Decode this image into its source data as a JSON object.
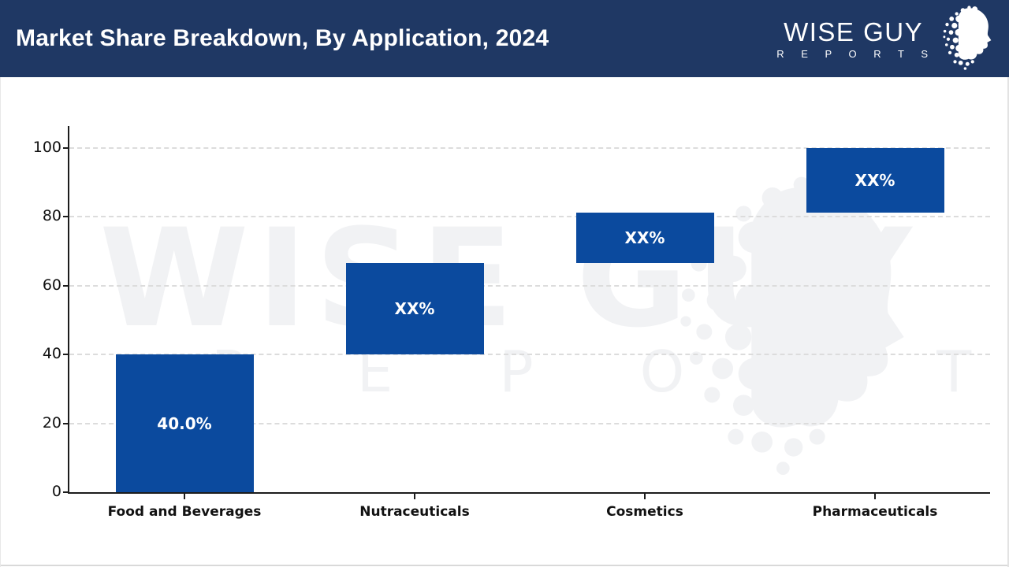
{
  "header": {
    "title": "Market Share Breakdown, By Application, 2024",
    "logo": {
      "line1": "WISE GUY",
      "line2": "R E P O R T S"
    }
  },
  "watermark": {
    "line1": "WISE GUY",
    "line2": "R E P O R T S"
  },
  "colors": {
    "header_bg": "#1f3864",
    "bar": "#0b4a9e",
    "bar_label": "#ffffff",
    "grid": "#dcdcdc",
    "axis": "#1c1c1c",
    "watermark": "#f1f2f4"
  },
  "chart_data": {
    "type": "bar",
    "subtype": "waterfall",
    "title": "Market Share Breakdown, By Application, 2024",
    "categories": [
      "Food and Beverages",
      "Nutraceuticals",
      "Cosmetics",
      "Pharmaceuticals"
    ],
    "segments": [
      {
        "category": "Food and Beverages",
        "from": 0,
        "to": 40,
        "label": "40.0%"
      },
      {
        "category": "Nutraceuticals",
        "from": 40,
        "to": 66.5,
        "label": "XX%"
      },
      {
        "category": "Cosmetics",
        "from": 66.5,
        "to": 81.3,
        "label": "XX%"
      },
      {
        "category": "Pharmaceuticals",
        "from": 81.3,
        "to": 100,
        "label": "XX%"
      }
    ],
    "values_implied_share": [
      40,
      26.5,
      14.8,
      18.7
    ],
    "xlabel": "",
    "ylabel": "",
    "yticks": [
      0,
      20,
      40,
      60,
      80,
      100
    ],
    "ylim": [
      0,
      106.5
    ],
    "grid": "horizontal-dashed",
    "legend": "none"
  }
}
